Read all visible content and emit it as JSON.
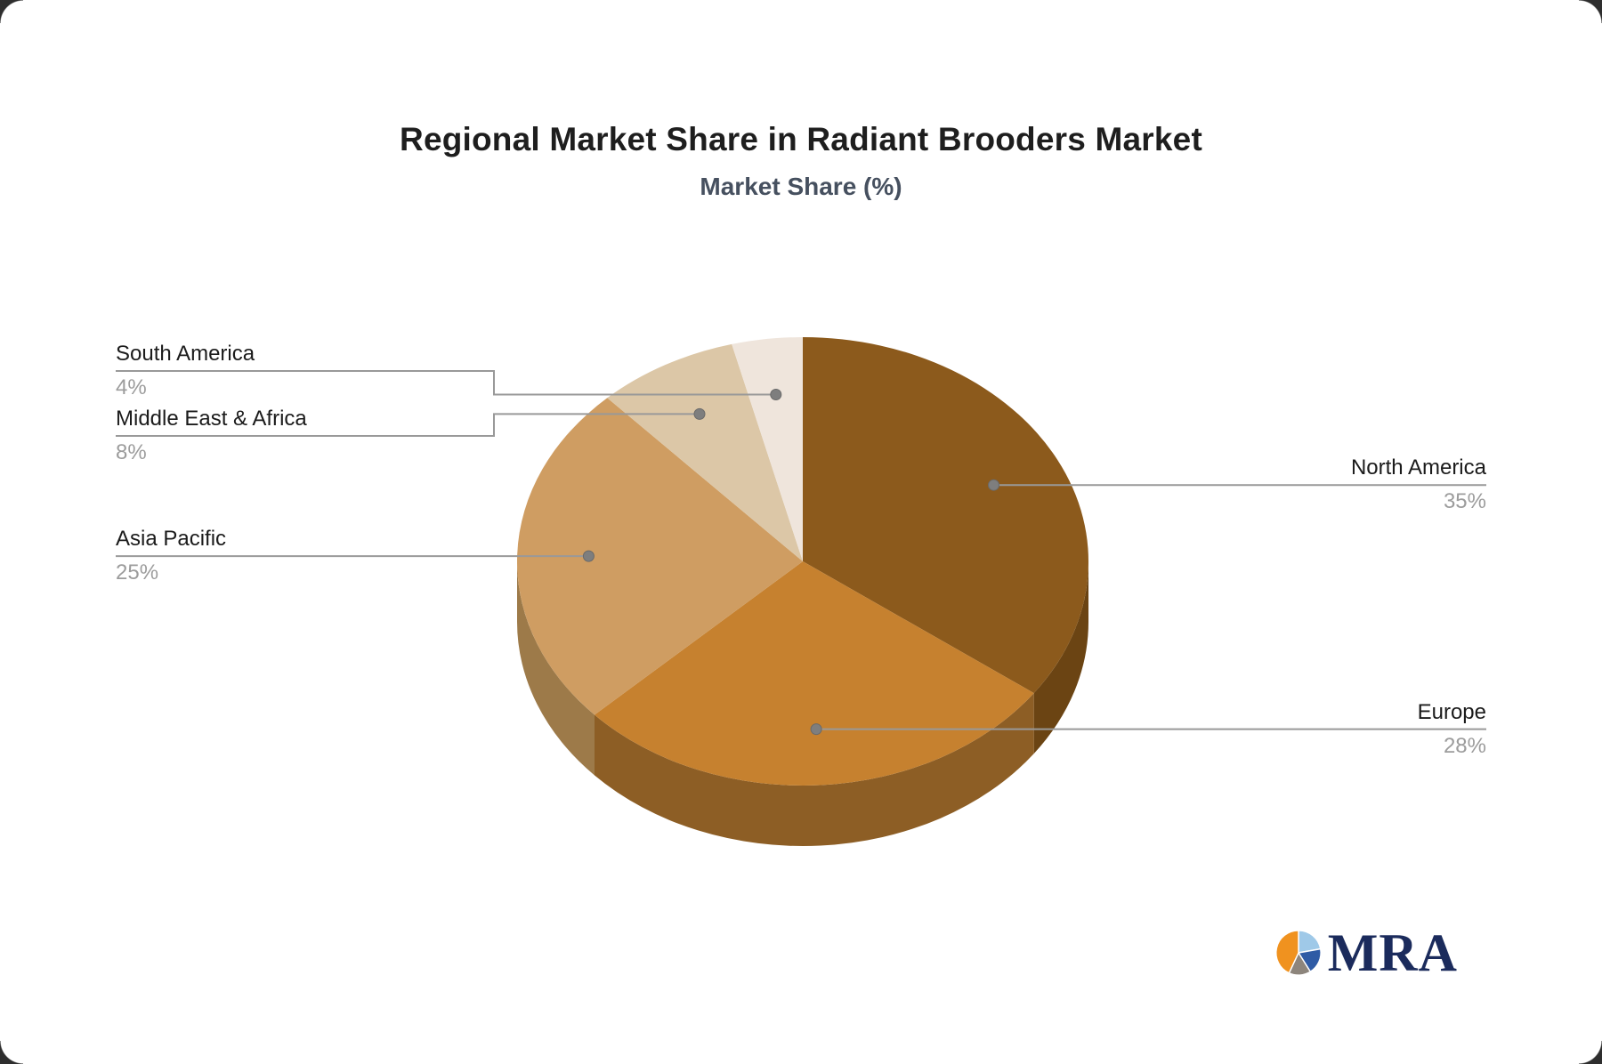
{
  "title": "Regional Market Share in Radiant Brooders Market",
  "subtitle": "Market Share (%)",
  "chart_data": {
    "type": "pie",
    "style": "3d",
    "title": "Regional Market Share in Radiant Brooders Market",
    "subtitle": "Market Share (%)",
    "value_unit": "%",
    "start_angle_deg": 0,
    "direction": "clockwise",
    "legend": "none",
    "slices": [
      {
        "label": "North America",
        "value": 35,
        "display": "35%",
        "color": "#8C5A1C",
        "side_color": "#6B4413",
        "label_side": "right"
      },
      {
        "label": "Europe",
        "value": 28,
        "display": "28%",
        "color": "#C6812F",
        "side_color": "#8D5E25",
        "label_side": "right"
      },
      {
        "label": "Asia Pacific",
        "value": 25,
        "display": "25%",
        "color": "#CF9D62",
        "side_color": "#9D7A49",
        "label_side": "left"
      },
      {
        "label": "Middle East & Africa",
        "value": 8,
        "display": "8%",
        "color": "#DCC7A7",
        "side_color": "#B09678",
        "label_side": "left"
      },
      {
        "label": "South America",
        "value": 4,
        "display": "4%",
        "color": "#EFE5DC",
        "side_color": "#C4B3A4",
        "label_side": "left"
      }
    ]
  },
  "colors": {
    "background": "#FFFFFF",
    "title": "#1E1E1E",
    "subtitle": "#46505F",
    "label": "#1B1B1B",
    "percent": "#9C9C9C",
    "leader_line": "#999999",
    "leader_dot": "#7E7E7E"
  },
  "logo": {
    "text": "MRA",
    "icon": "pie-chart-icon",
    "text_color": "#1B2B5C",
    "icon_colors": [
      "#9FC9E8",
      "#2F5BA5",
      "#8D857C",
      "#F0921F"
    ]
  }
}
